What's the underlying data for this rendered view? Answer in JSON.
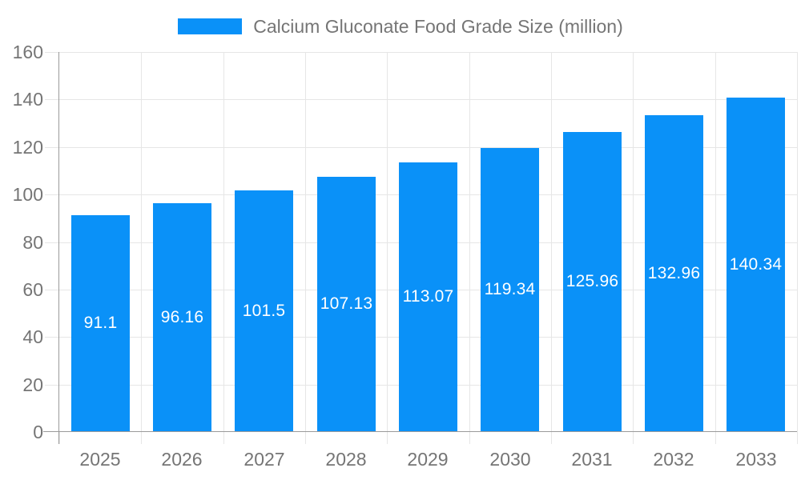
{
  "chart_data": {
    "type": "bar",
    "legend_label": "Calcium Gluconate Food Grade Size (million)",
    "categories": [
      "2025",
      "2026",
      "2027",
      "2028",
      "2029",
      "2030",
      "2031",
      "2032",
      "2033"
    ],
    "values": [
      91.1,
      96.16,
      101.5,
      107.13,
      113.07,
      119.34,
      125.96,
      132.96,
      140.34
    ],
    "ylim": [
      0,
      160
    ],
    "yticks": [
      0,
      20,
      40,
      60,
      80,
      100,
      120,
      140,
      160
    ],
    "grid": true,
    "legend_position": "top-center",
    "value_labels_inside_bars": true,
    "colors": {
      "bar": "#0a91f8",
      "axis": "#9b9b9b",
      "grid": "#e6e6e6",
      "tick_label": "#757575",
      "legend_text": "#757575",
      "value_label": "#ffffff",
      "background": "#ffffff"
    }
  }
}
